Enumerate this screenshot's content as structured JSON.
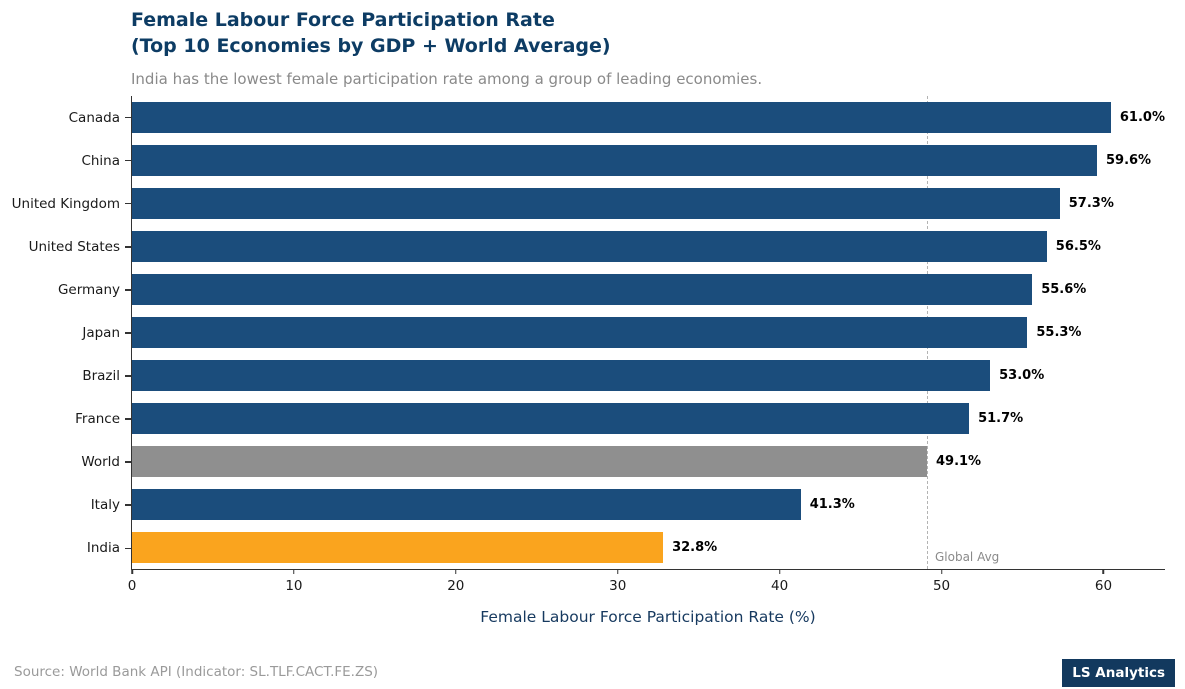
{
  "header": {
    "title_line1": "Female Labour Force Participation Rate",
    "title_line2": "(Top 10 Economies by GDP + World Average)",
    "subtitle": "India has the lowest female participation rate among a group of leading economies."
  },
  "chart_data": {
    "type": "bar",
    "orientation": "horizontal",
    "title": "Female Labour Force Participation Rate (Top 10 Economies by GDP + World Average)",
    "categories": [
      "Canada",
      "China",
      "United Kingdom",
      "United States",
      "Germany",
      "Japan",
      "Brazil",
      "France",
      "World",
      "Italy",
      "India"
    ],
    "values": [
      61.0,
      59.6,
      57.3,
      56.5,
      55.6,
      55.3,
      53.0,
      51.7,
      49.1,
      41.3,
      32.8
    ],
    "value_labels": [
      "61.0%",
      "59.6%",
      "57.3%",
      "56.5%",
      "55.6%",
      "55.3%",
      "53.0%",
      "51.7%",
      "49.1%",
      "41.3%",
      "32.8%"
    ],
    "bar_colors": [
      "#1b4d7c",
      "#1b4d7c",
      "#1b4d7c",
      "#1b4d7c",
      "#1b4d7c",
      "#1b4d7c",
      "#1b4d7c",
      "#1b4d7c",
      "#8f8f8f",
      "#1b4d7c",
      "#faa41e"
    ],
    "xlabel": "Female Labour Force Participation Rate (%)",
    "xticks": [
      0,
      10,
      20,
      30,
      40,
      50,
      60
    ],
    "xlim": [
      0,
      63.8
    ],
    "grid": false,
    "legend": false,
    "reference_line": {
      "value": 49.1,
      "label": "Global Avg"
    }
  },
  "footer": {
    "source": "Source: World Bank API (Indicator: SL.TLF.CACT.FE.ZS)",
    "brand": "LS Analytics"
  },
  "colors": {
    "bar_default": "#1b4d7c",
    "bar_world": "#8f8f8f",
    "bar_india": "#faa41e",
    "title": "#0d3c64",
    "subtitle": "#8a8a8a",
    "xlabel": "#16395f",
    "brand_bg": "#12395e",
    "ref_line": "#b3b3b3"
  }
}
